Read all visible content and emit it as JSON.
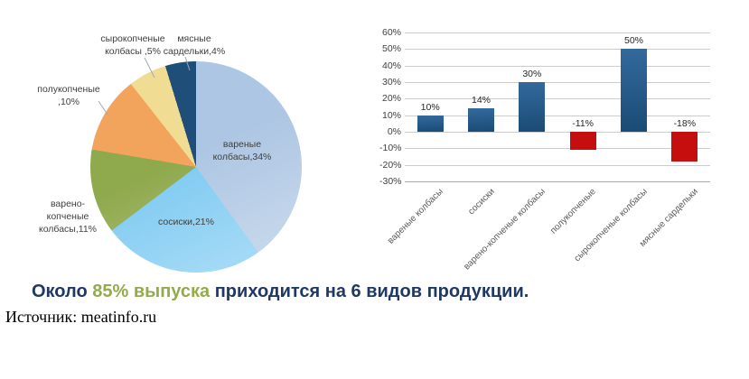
{
  "caption": {
    "part1": "Около ",
    "highlight": "85% выпуска",
    "part2": " приходится на 6 видов продукции.",
    "color_dark": "#1f3864",
    "color_highlight": "#93ab4c"
  },
  "source": {
    "label": "Источник: meatinfo.ru"
  },
  "chart_data": [
    {
      "type": "pie",
      "title": "",
      "unit": "%",
      "note": "slice percentages sum to 85; pie is normalized to full circle",
      "start_angle_deg": 0,
      "direction": "clockwise",
      "slices": [
        {
          "label": "вареные колбасы",
          "value": 34,
          "color": "#adc6e3",
          "lines": [
            "вареные",
            "колбасы,34%"
          ]
        },
        {
          "label": "сосиски",
          "value": 21,
          "color": "#7ecaf2",
          "lines": [
            "сосиски,21%"
          ]
        },
        {
          "label": "варено-копченые колбасы",
          "value": 11,
          "color": "#8fa94d",
          "lines": [
            "варено-",
            "копченые",
            "колбасы,11%"
          ]
        },
        {
          "label": "полукопченые",
          "value": 10,
          "color": "#f2a45c",
          "lines": [
            "полукопченые",
            ",10%"
          ]
        },
        {
          "label": "сырокопченые колбасы",
          "value": 5,
          "color": "#f0dd93",
          "lines": [
            "сырокопченые",
            "колбасы ,5%"
          ]
        },
        {
          "label": "мясные сардельки",
          "value": 4,
          "color": "#1f4e79",
          "lines": [
            "мясные",
            "сардельки,4%"
          ]
        }
      ]
    },
    {
      "type": "bar",
      "title": "",
      "categories": [
        "вареные колбасы",
        "сосиски",
        "варено-копченые колбасы",
        "полукопченые",
        "сырокопченые колбасы",
        "мясные сардельки"
      ],
      "values": [
        10,
        14,
        30,
        -11,
        50,
        -18
      ],
      "labels": [
        "10%",
        "14%",
        "30%",
        "-11%",
        "50%",
        "-18%"
      ],
      "ylim": [
        -30,
        60
      ],
      "ytick_step": 10,
      "yticks": [
        "60%",
        "50%",
        "40%",
        "30%",
        "20%",
        "10%",
        "0%",
        "-10%",
        "-20%",
        "-30%"
      ],
      "grid": true,
      "legend": "none",
      "positive_color": "#1f4e79",
      "negative_color": "#c50f0f",
      "gridline_color": "#cccccc"
    }
  ]
}
